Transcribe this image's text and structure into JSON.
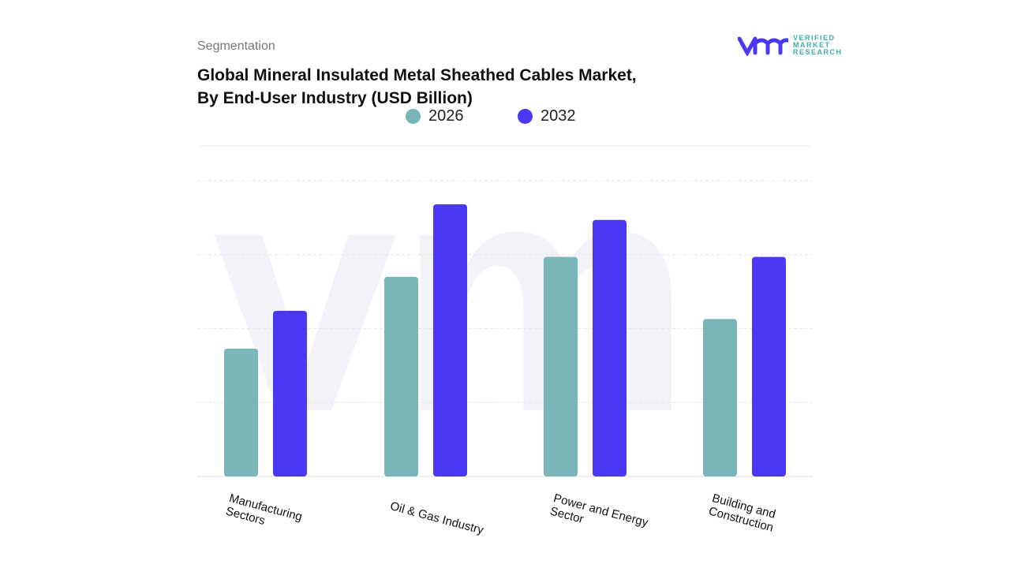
{
  "header": {
    "section": "Segmentation",
    "title_line1": "Global Mineral Insulated Metal Sheathed Cables Market,",
    "title_line2": "By End-User Industry (USD Billion)"
  },
  "logo": {
    "mark": "vmr",
    "line1": "VERIFIED",
    "line2": "MARKET",
    "line3": "RESEARCH"
  },
  "chart_data": {
    "type": "bar",
    "title": "Global Mineral Insulated Metal Sheathed Cables Market, By End-User Industry (USD Billion)",
    "categories": [
      "Manufacturing Sectors",
      "Oil & Gas Industry",
      "Power and Energy Sector",
      "Building and Construction"
    ],
    "series": [
      {
        "name": "2026",
        "color": "#7ab5b8",
        "values": [
          1.73,
          2.7,
          2.97,
          2.13
        ]
      },
      {
        "name": "2032",
        "color": "#4b38f5",
        "values": [
          2.24,
          3.68,
          3.47,
          2.97
        ]
      }
    ],
    "ylim": [
      0,
      4
    ],
    "grid": true,
    "legend": "top",
    "xlabel": "",
    "ylabel": ""
  }
}
